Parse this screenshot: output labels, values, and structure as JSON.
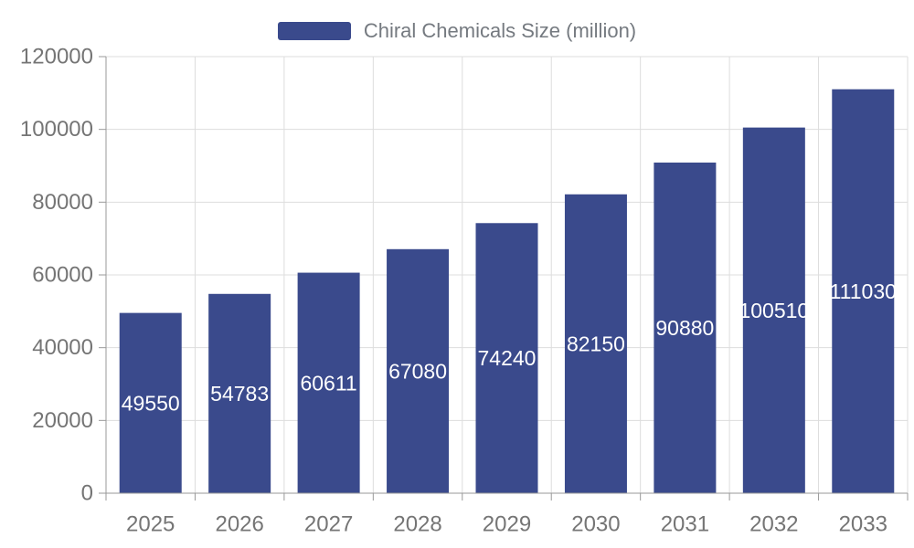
{
  "legend": {
    "label": "Chiral Chemicals Size (million)"
  },
  "colors": {
    "bar": "#3A4A8C",
    "axis_line": "#999999",
    "grid_line": "#DDDDDD",
    "axis_label": "#757575",
    "value_label": "#FFFFFF",
    "legend_text": "#757A80",
    "background": "#FFFFFF"
  },
  "chart_data": {
    "type": "bar",
    "title": "Chiral Chemicals Size (million)",
    "categories": [
      "2025",
      "2026",
      "2027",
      "2028",
      "2029",
      "2030",
      "2031",
      "2032",
      "2033"
    ],
    "values": [
      49550,
      54783,
      60611,
      67080,
      74240,
      82150,
      90880,
      100510,
      111030
    ],
    "xlabel": "",
    "ylabel": "",
    "ylim": [
      0,
      120000
    ],
    "yticks": [
      0,
      20000,
      40000,
      60000,
      80000,
      100000,
      120000
    ],
    "grid": true,
    "legend_position": "top-center",
    "value_label_position": "inside-center"
  }
}
